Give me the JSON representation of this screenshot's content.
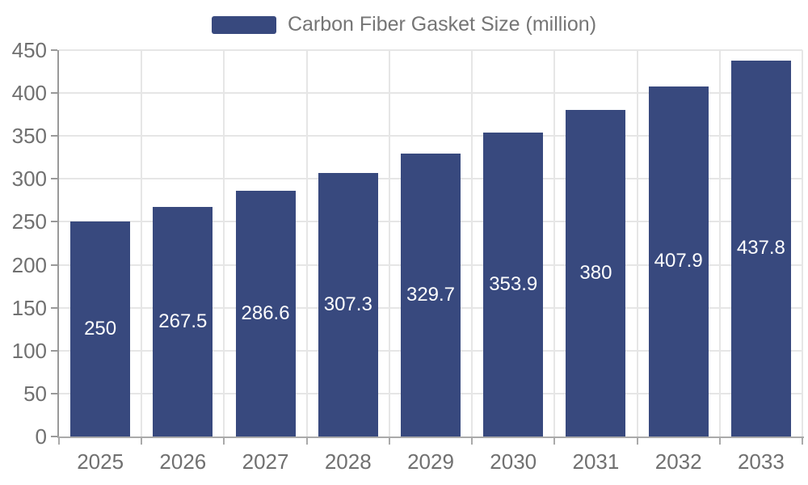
{
  "legend": {
    "label": "Carbon Fiber Gasket Size (million)"
  },
  "colors": {
    "bar": "#38497E",
    "grid": "#e6e6e6",
    "axis_line": "#9a9a9a",
    "tick_text": "#707070",
    "legend_text": "#757575",
    "value_label_text": "#ffffff",
    "background": "#ffffff"
  },
  "chart_data": {
    "type": "bar",
    "title": "Carbon Fiber Gasket Size (million)",
    "categories": [
      "2025",
      "2026",
      "2027",
      "2028",
      "2029",
      "2030",
      "2031",
      "2032",
      "2033"
    ],
    "values": [
      250,
      267.5,
      286.6,
      307.3,
      329.7,
      353.9,
      380,
      407.9,
      437.8
    ],
    "series_name": "Carbon Fiber Gasket Size (million)",
    "xlabel": "",
    "ylabel": "",
    "ylim": [
      0,
      450
    ],
    "ytick_step": 50,
    "grid": true,
    "legend_position": "top-center",
    "value_labels": "inside-center-white"
  }
}
